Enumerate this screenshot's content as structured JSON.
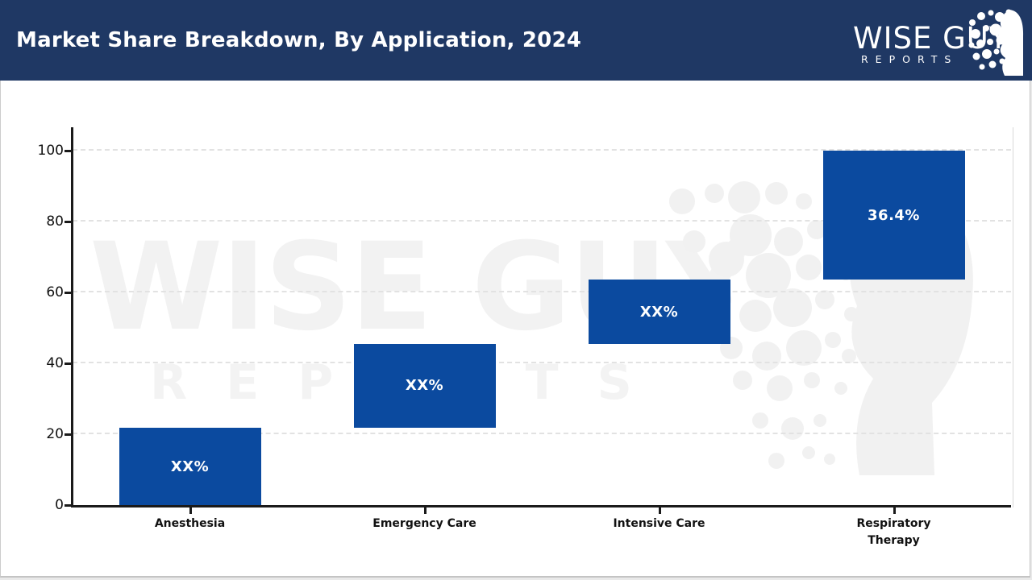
{
  "header": {
    "title": "Market Share Breakdown, By Application, 2024",
    "logo": {
      "line1": "WISE GUY",
      "line2": "REPORTS"
    }
  },
  "watermark": {
    "line1": "WISE GUY",
    "line2": "REPORTS"
  },
  "colors": {
    "header_bg": "#1f3864",
    "bar_fill": "#0b4a9f",
    "bar_label_text": "#ffffff",
    "axis": "#1a1a1a",
    "gridline": "#e2e2e2",
    "watermark": "#f2f2f2"
  },
  "chart_data": {
    "type": "bar",
    "variant": "floating-segment-breakdown",
    "title": "Market Share Breakdown, By Application, 2024",
    "categories": [
      "Anesthesia",
      "Emergency Care",
      "Intensive Care",
      "Respiratory Therapy"
    ],
    "segments": [
      {
        "category": "Anesthesia",
        "from": 0,
        "to": 21.8,
        "label": "XX%"
      },
      {
        "category": "Emergency Care",
        "from": 21.8,
        "to": 45.5,
        "label": "XX%"
      },
      {
        "category": "Intensive Care",
        "from": 45.5,
        "to": 63.6,
        "label": "XX%"
      },
      {
        "category": "Respiratory Therapy",
        "from": 63.6,
        "to": 100,
        "label": "36.4%"
      }
    ],
    "bar_labels": [
      "XX%",
      "XX%",
      "XX%",
      "36.4%"
    ],
    "ylim": [
      0,
      100
    ],
    "yticks": [
      0,
      20,
      40,
      60,
      80,
      100
    ],
    "xlabel": "",
    "ylabel": "",
    "legend": "none",
    "grid": "horizontal-dashed"
  }
}
